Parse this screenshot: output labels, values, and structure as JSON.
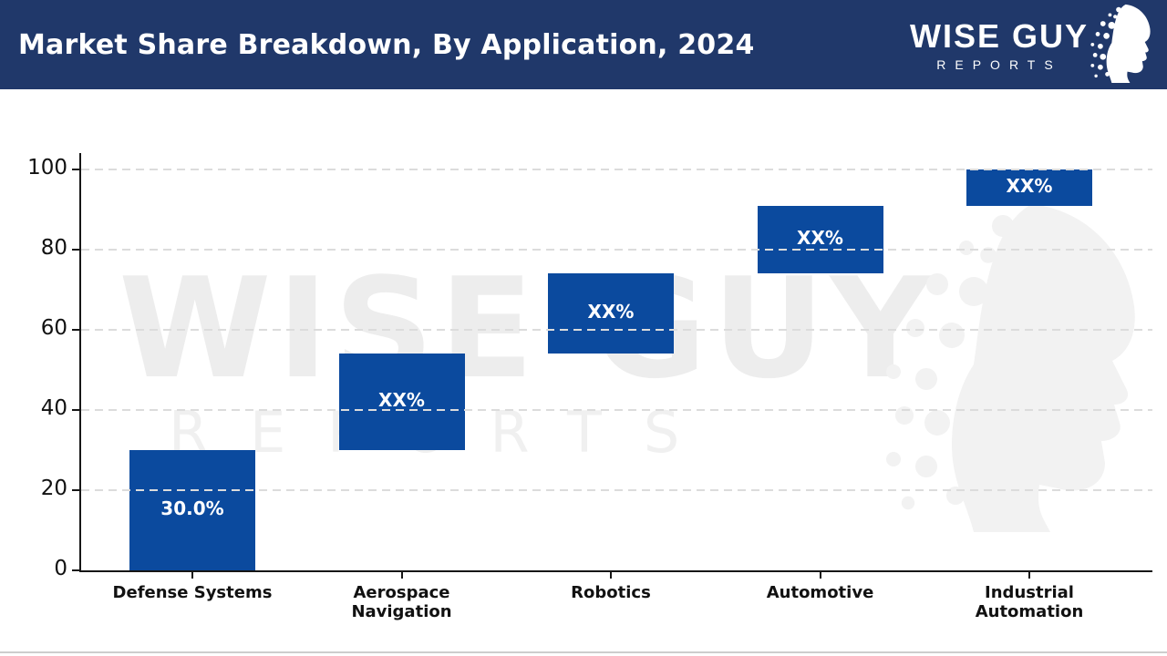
{
  "header": {
    "title": "Market Share Breakdown, By Application, 2024",
    "logo": {
      "line1": "WISE GUY",
      "line2": "REPORTS"
    }
  },
  "watermark": {
    "line1": "WISE GUY",
    "line2": "REPORTS"
  },
  "colors": {
    "header_bg": "#20386a",
    "bar": "#0b4a9e",
    "grid": "#dcdcdc",
    "axis": "#161616",
    "bar_label_text": "#ffffff",
    "watermark_text": "#ededed"
  },
  "chart_data": {
    "type": "bar",
    "subtype": "waterfall",
    "title": "Market Share Breakdown, By Application, 2024",
    "categories": [
      "Defense Systems",
      "Aerospace Navigation",
      "Robotics",
      "Automotive",
      "Industrial Automation"
    ],
    "bars": [
      {
        "category_lines": [
          "Defense Systems"
        ],
        "label": "30.0%",
        "start": 0,
        "end": 30
      },
      {
        "category_lines": [
          "Aerospace",
          "Navigation"
        ],
        "label": "XX%",
        "start": 30,
        "end": 54
      },
      {
        "category_lines": [
          "Robotics"
        ],
        "label": "XX%",
        "start": 54,
        "end": 74
      },
      {
        "category_lines": [
          "Automotive"
        ],
        "label": "XX%",
        "start": 74,
        "end": 91
      },
      {
        "category_lines": [
          "Industrial",
          "Automation"
        ],
        "label": "XX%",
        "start": 91,
        "end": 100
      }
    ],
    "y_ticks": [
      0,
      20,
      40,
      60,
      80,
      100
    ],
    "ylim": [
      0,
      104
    ],
    "xlabel": "",
    "ylabel": "",
    "grid": "dashed-horizontal",
    "legend": "none"
  }
}
